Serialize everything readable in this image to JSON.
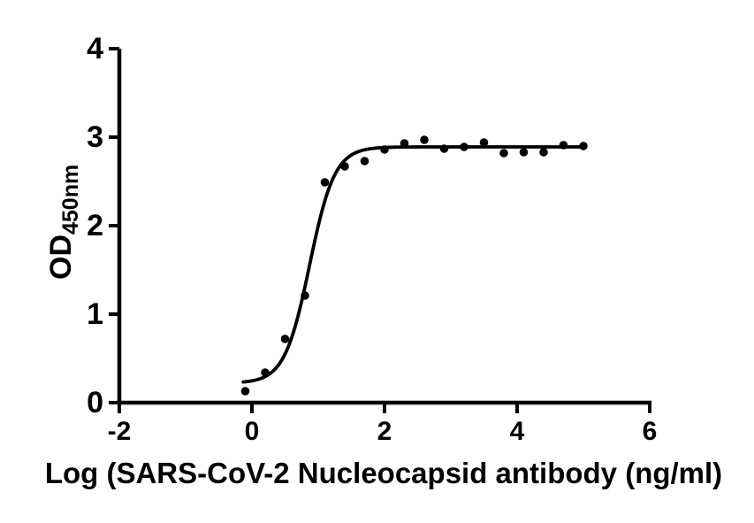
{
  "figure": {
    "background_color": "#ffffff",
    "ink_color": "#000000"
  },
  "chart_data": {
    "type": "scatter",
    "subtype": "dose-response-curve-with-4pl-fit",
    "title": "",
    "xlabel": "Log (SARS-CoV-2 Nucleocapsid antibody (ng/ml)",
    "ylabel_main": "OD",
    "ylabel_subscript": "450nm",
    "xlim": [
      -2,
      6
    ],
    "ylim": [
      0,
      4
    ],
    "grid": false,
    "legend_position": "none",
    "x_ticks": [
      {
        "label": "-2",
        "value": -2
      },
      {
        "label": "0",
        "value": 0
      },
      {
        "label": "2",
        "value": 2
      },
      {
        "label": "4",
        "value": 4
      },
      {
        "label": "6",
        "value": 6
      }
    ],
    "y_ticks": [
      {
        "label": "0",
        "value": 0
      },
      {
        "label": "1",
        "value": 1
      },
      {
        "label": "2",
        "value": 2
      },
      {
        "label": "3",
        "value": 3
      },
      {
        "label": "4",
        "value": 4
      }
    ],
    "points": [
      {
        "x": -0.1,
        "y": 0.13
      },
      {
        "x": 0.2,
        "y": 0.34
      },
      {
        "x": 0.5,
        "y": 0.72
      },
      {
        "x": 0.8,
        "y": 1.21
      },
      {
        "x": 1.1,
        "y": 2.49
      },
      {
        "x": 1.4,
        "y": 2.67
      },
      {
        "x": 1.7,
        "y": 2.73
      },
      {
        "x": 2.0,
        "y": 2.86
      },
      {
        "x": 2.3,
        "y": 2.93
      },
      {
        "x": 2.6,
        "y": 2.97
      },
      {
        "x": 2.9,
        "y": 2.87
      },
      {
        "x": 3.2,
        "y": 2.89
      },
      {
        "x": 3.5,
        "y": 2.94
      },
      {
        "x": 3.8,
        "y": 2.82
      },
      {
        "x": 4.1,
        "y": 2.83
      },
      {
        "x": 4.4,
        "y": 2.83
      },
      {
        "x": 4.7,
        "y": 2.91
      },
      {
        "x": 5.0,
        "y": 2.9
      }
    ],
    "fit_curve": {
      "model": "4PL",
      "bottom": 0.22,
      "top": 2.89,
      "log_ec50": 0.87,
      "hill_slope": 2.3,
      "x_start": -0.13,
      "x_end": 5.04
    }
  }
}
